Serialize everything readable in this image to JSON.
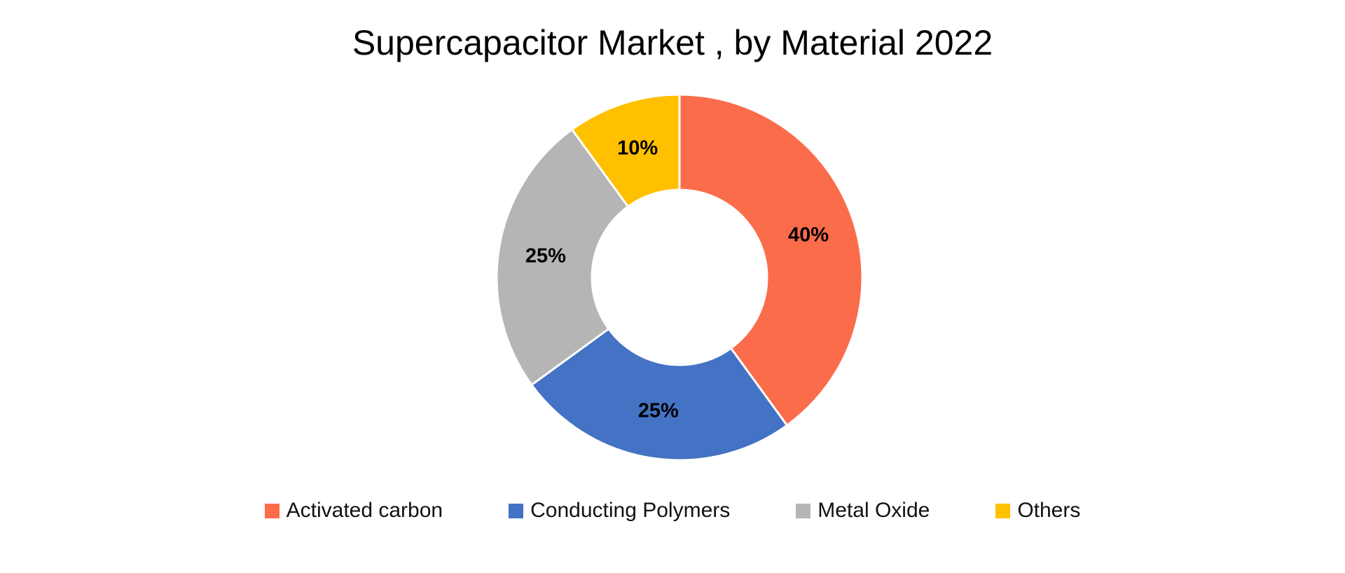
{
  "chart_data": {
    "type": "pie",
    "subtype": "donut",
    "title": "Supercapacitor Market , by Material 2022",
    "segments": [
      {
        "label": "Activated carbon",
        "value": 40,
        "data_label": "40%",
        "color": "#FB6C4A"
      },
      {
        "label": "Conducting Polymers",
        "value": 25,
        "data_label": "25%",
        "color": "#4472C4"
      },
      {
        "label": "Metal Oxide",
        "value": 25,
        "data_label": "25%",
        "color": "#B5B5B5"
      },
      {
        "label": "Others",
        "value": 10,
        "data_label": "10%",
        "color": "#FFC000"
      }
    ],
    "start_angle_deg": 0,
    "direction": "clockwise",
    "hole_ratio": 0.48,
    "slice_border_color": "#FFFFFF",
    "legend_position": "bottom",
    "background_color": "#FFFFFF",
    "data_label_color": "#000000"
  }
}
